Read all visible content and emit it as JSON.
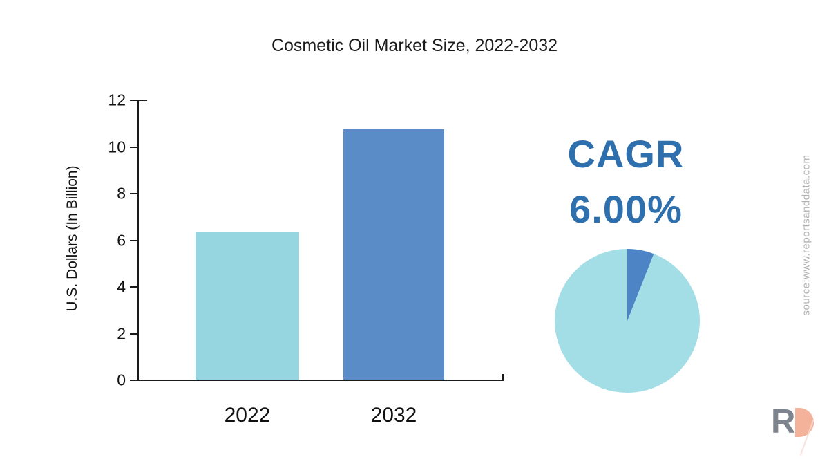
{
  "title": "Cosmetic Oil Market Size, 2022-2032",
  "chart_data": [
    {
      "type": "bar",
      "title": "Cosmetic Oil Market Size, 2022-2032",
      "categories": [
        "2022",
        "2032"
      ],
      "values": [
        6.35,
        10.75
      ],
      "bar_colors": [
        "#95d6e1",
        "#5a8cc8"
      ],
      "xlabel": "",
      "ylabel": "U.S. Dollars (In Billion)",
      "ylim": [
        0,
        12
      ],
      "yticks": [
        0,
        2,
        4,
        6,
        8,
        10,
        12
      ],
      "grid": false,
      "legend": false
    },
    {
      "type": "pie",
      "values": [
        6,
        94
      ],
      "colors": [
        "#4c84c5",
        "#a3dde6"
      ],
      "start_angle_deg": 0,
      "direction": "clockwise",
      "annotation": "CAGR 6.00%"
    }
  ],
  "cagr": {
    "label": "CAGR",
    "value": "6.00%",
    "color": "#2e6fad"
  },
  "source_note": "source:www.reportsanddata.com",
  "logo": {
    "letter_r": "R",
    "r_color": "#7d848e",
    "d_color": "#f4b29a"
  }
}
